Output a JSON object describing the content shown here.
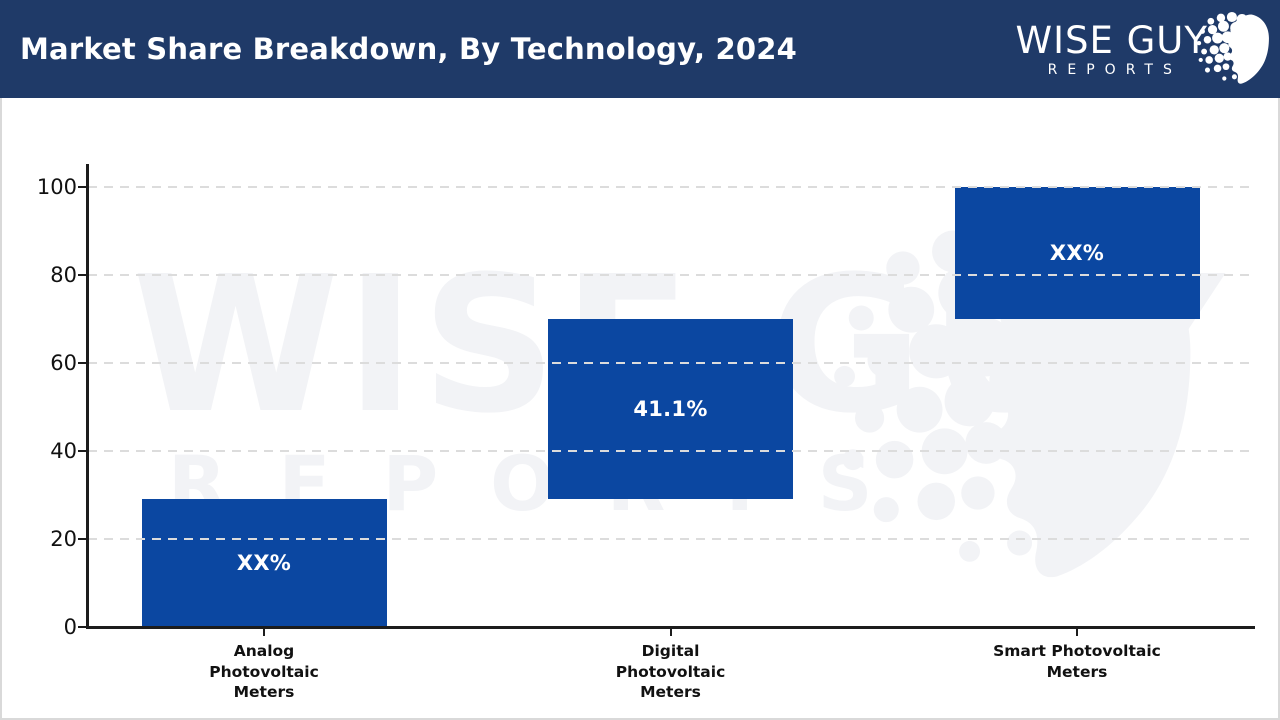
{
  "header": {
    "title": "Market Share Breakdown, By Technology, 2024",
    "logo": {
      "name": "WISE GUY",
      "sub": "REPORTS"
    }
  },
  "watermark": {
    "name": "WISE GUY",
    "sub": "REPORTS"
  },
  "colors": {
    "header_bg": "#1f3a68",
    "bar": "#0b47a1",
    "grid": "#dcdcdc",
    "axis": "#1c1c1c",
    "watermark": "#f2f3f6",
    "bar_label": "#ffffff",
    "tick_label": "#111111"
  },
  "chart_data": {
    "type": "bar",
    "subtype": "waterfall",
    "title": "Market Share Breakdown, By Technology, 2024",
    "xlabel": "",
    "ylabel": "",
    "ylim": [
      0,
      105
    ],
    "yticks": [
      0,
      20,
      40,
      60,
      80,
      100
    ],
    "grid": "dashed-horizontal",
    "legend": "none",
    "categories": [
      "Analog Photovoltaic Meters",
      "Digital Photovoltaic Meters",
      "Smart Photovoltaic Meters"
    ],
    "category_lines": [
      [
        "Analog",
        "Photovoltaic",
        "Meters"
      ],
      [
        "Digital",
        "Photovoltaic",
        "Meters"
      ],
      [
        "Smart Photovoltaic",
        "Meters"
      ]
    ],
    "segments": [
      {
        "category": "Analog Photovoltaic Meters",
        "start": 0,
        "end": 29,
        "value": 29,
        "label": "XX%"
      },
      {
        "category": "Digital Photovoltaic Meters",
        "start": 29,
        "end": 70.1,
        "value": 41.1,
        "label": "41.1%"
      },
      {
        "category": "Smart Photovoltaic Meters",
        "start": 70.1,
        "end": 100,
        "value": 29.9,
        "label": "XX%"
      }
    ]
  }
}
